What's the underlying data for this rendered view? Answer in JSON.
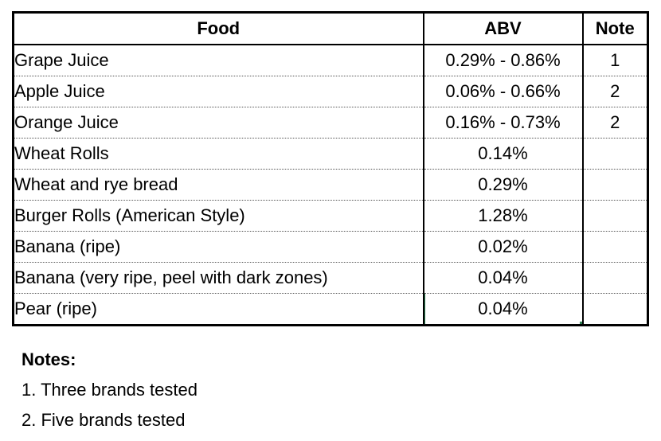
{
  "table": {
    "headers": [
      "Food",
      "ABV",
      "Note"
    ],
    "rows": [
      {
        "food": "Grape Juice",
        "abv": "0.29% - 0.86%",
        "note": "1"
      },
      {
        "food": "Apple Juice",
        "abv": "0.06% - 0.66%",
        "note": "2"
      },
      {
        "food": "Orange Juice",
        "abv": "0.16% - 0.73%",
        "note": "2"
      },
      {
        "food": "Wheat Rolls",
        "abv": "0.14%",
        "note": ""
      },
      {
        "food": "Wheat and rye bread",
        "abv": "0.29%",
        "note": ""
      },
      {
        "food": "Burger Rolls (American Style)",
        "abv": "1.28%",
        "note": ""
      },
      {
        "food": "Banana (ripe)",
        "abv": "0.02%",
        "note": ""
      },
      {
        "food": "Banana (very ripe, peel with dark zones)",
        "abv": "0.04%",
        "note": ""
      },
      {
        "food": "Pear (ripe)",
        "abv": "0.04%",
        "note": ""
      }
    ],
    "selected_cell": {
      "row_index": 8,
      "column": "abv"
    }
  },
  "notes": {
    "title": "Notes:",
    "items": [
      "1. Three brands tested",
      "2. Five brands tested"
    ]
  },
  "colors": {
    "selection": "#2b7d51",
    "grid": "#000000"
  }
}
